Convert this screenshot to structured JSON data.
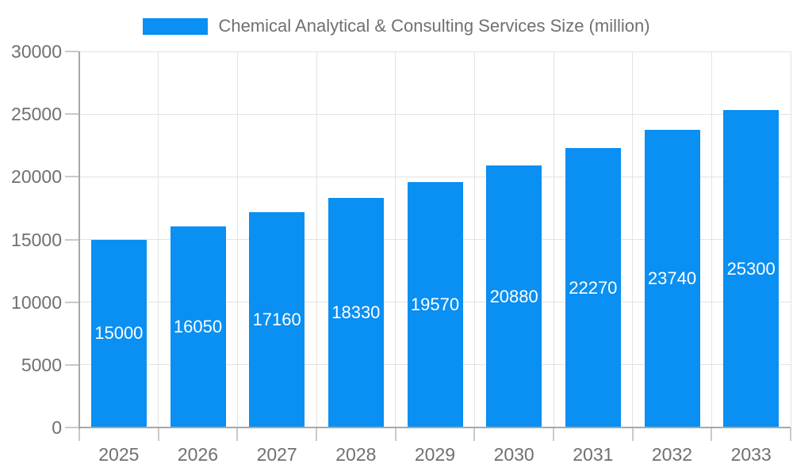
{
  "chart_data": {
    "type": "bar",
    "title": "Chemical Analytical & Consulting Services Size (million)",
    "series_name": "Chemical Analytical & Consulting Services Size (million)",
    "categories": [
      "2025",
      "2026",
      "2027",
      "2028",
      "2029",
      "2030",
      "2031",
      "2032",
      "2033"
    ],
    "values": [
      15000,
      16050,
      17160,
      18330,
      19570,
      20880,
      22270,
      23740,
      25300
    ],
    "xlabel": "",
    "ylabel": "",
    "ylim": [
      0,
      30000
    ],
    "yticks": [
      0,
      5000,
      10000,
      15000,
      20000,
      25000,
      30000
    ],
    "grid": true,
    "legend_position": "top",
    "value_labels": "inside-center"
  },
  "colors": {
    "bar": "#0a8ff2",
    "grid": "#e3e3e3",
    "axis": "#a8a8a8",
    "tick": "#c9c9c9",
    "label_text": "#707070",
    "value_text": "#ffffff",
    "background": "#ffffff"
  }
}
